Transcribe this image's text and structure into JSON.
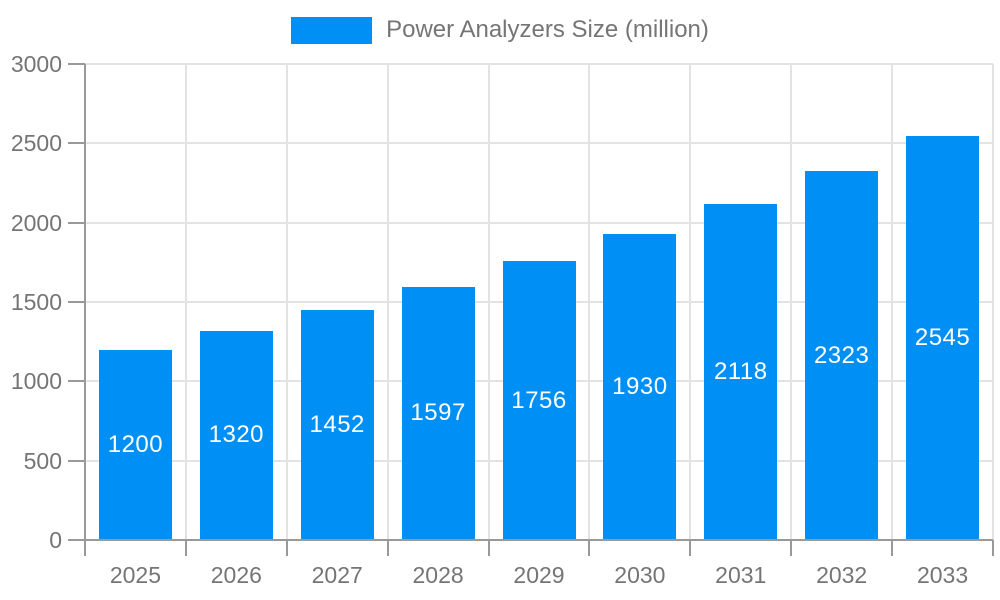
{
  "chart_data": {
    "type": "bar",
    "title": "Power Analyzers Size (million)",
    "categories": [
      "2025",
      "2026",
      "2027",
      "2028",
      "2029",
      "2030",
      "2031",
      "2032",
      "2033"
    ],
    "series": [
      {
        "name": "Power Analyzers Size (million)",
        "values": [
          1200,
          1320,
          1452,
          1597,
          1756,
          1930,
          2118,
          2323,
          2545
        ]
      }
    ],
    "value_labels_shown_inside_bars": true,
    "xlabel": "",
    "ylabel": "",
    "ylim": [
      0,
      3000
    ],
    "yticks": [
      0,
      500,
      1000,
      1500,
      2000,
      2500,
      3000
    ],
    "grid": true,
    "legend_position": "top-center",
    "colors": {
      "bar": "#008FF5",
      "value_label": "#ffffff",
      "axis_text": "#757575",
      "axis_line": "#999999",
      "gridline": "#e3e3e3",
      "background": "#ffffff"
    }
  }
}
